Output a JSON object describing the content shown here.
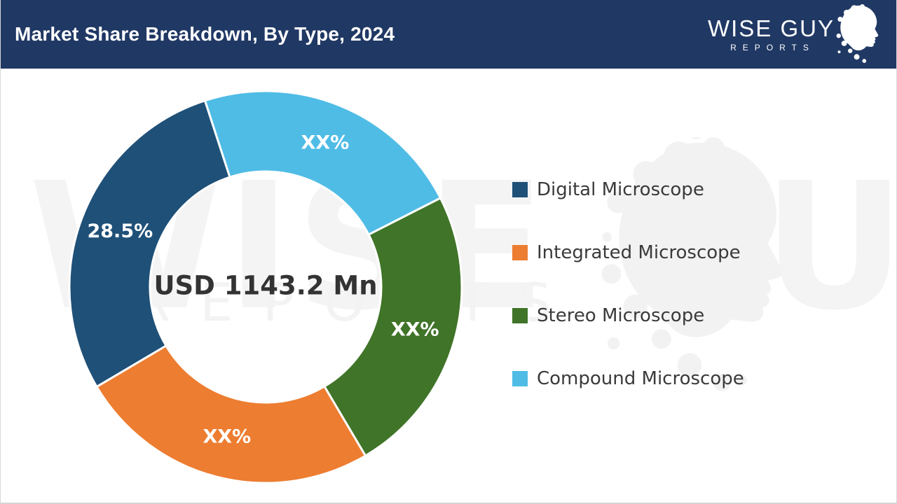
{
  "header": {
    "title": "Market Share Breakdown, By Type, 2024",
    "bg_color": "#203864",
    "logo": {
      "line1": "WISE GUY",
      "line2": "REPORTS"
    }
  },
  "watermark": {
    "line1": "WISE GUY",
    "line2": "REPORTS"
  },
  "chart_data": {
    "type": "pie",
    "subtype": "donut",
    "title": "Market Share Breakdown, By Type, 2024",
    "center_label": "USD 1143.2 Mn",
    "units": "percent of market share",
    "start_angle_deg": 108,
    "direction": "counterclockwise",
    "inner_radius_ratio": 0.59,
    "legend_position": "right",
    "segments": [
      {
        "label": "Digital Microscope",
        "value_pct": 28.5,
        "display_label": "28.5%",
        "color": "#1F5078"
      },
      {
        "label": "Integrated Microscope",
        "value_pct": 25.0,
        "display_label": "XX%",
        "color": "#ED7D31"
      },
      {
        "label": "Stereo Microscope",
        "value_pct": 24.0,
        "display_label": "XX%",
        "color": "#407428"
      },
      {
        "label": "Compound Microscope",
        "value_pct": 22.5,
        "display_label": "XX%",
        "color": "#4FBCE6"
      }
    ]
  }
}
